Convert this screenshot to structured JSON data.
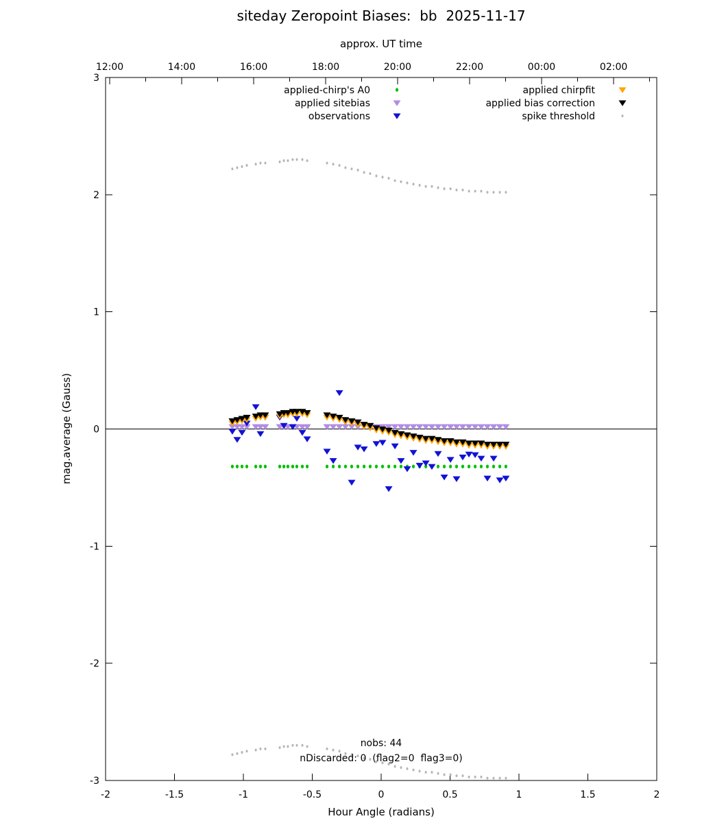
{
  "title": "siteday Zeropoint Biases:  bb  2025-11-17",
  "axes": {
    "top_label": "approx. UT time",
    "bottom_label": "Hour Angle (radians)",
    "left_label": "mag.average (Gauss)"
  },
  "annotations": {
    "nobs": "nobs: 44",
    "ndiscarded": "nDiscarded: 0  (flag2=0  flag3=0)"
  },
  "legend": {
    "items": [
      {
        "label": "applied-chirp's A0",
        "series": "applied-chirp's A0",
        "col": 0,
        "row": 0
      },
      {
        "label": "applied sitebias",
        "series": "applied sitebias",
        "col": 0,
        "row": 1
      },
      {
        "label": "observations",
        "series": "observations",
        "col": 0,
        "row": 2
      },
      {
        "label": "applied chirpfit",
        "series": "applied chirpfit",
        "col": 1,
        "row": 0
      },
      {
        "label": "applied bias correction",
        "series": "applied bias correction",
        "col": 1,
        "row": 1
      },
      {
        "label": "spike threshold",
        "series": "spike threshold upper",
        "col": 1,
        "row": 2
      }
    ]
  },
  "chart_data": {
    "type": "scatter",
    "title": "siteday Zeropoint Biases:  bb  2025-11-17",
    "xlabel": "Hour Angle (radians)",
    "x2label": "approx. UT time",
    "ylabel": "mag.average (Gauss)",
    "x_range": [
      -2,
      2
    ],
    "y_range": [
      -3,
      3
    ],
    "grid": false,
    "legend_position": "top-inside-two-columns",
    "x_ticks": [
      {
        "v": -2,
        "label": "-2"
      },
      {
        "v": -1.5,
        "label": "-1.5"
      },
      {
        "v": -1,
        "label": "-1"
      },
      {
        "v": -0.5,
        "label": "-0.5"
      },
      {
        "v": 0,
        "label": "0"
      },
      {
        "v": 0.5,
        "label": "0.5"
      },
      {
        "v": 1,
        "label": "1"
      },
      {
        "v": 1.5,
        "label": "1.5"
      },
      {
        "v": 2,
        "label": "2"
      }
    ],
    "y_ticks": [
      {
        "v": -3,
        "label": "-3"
      },
      {
        "v": -2,
        "label": "-2"
      },
      {
        "v": -1,
        "label": "-1"
      },
      {
        "v": 0,
        "label": "0"
      },
      {
        "v": 1,
        "label": "1"
      },
      {
        "v": 2,
        "label": "2"
      },
      {
        "v": 3,
        "label": "3"
      }
    ],
    "top_ticks": [
      {
        "x": -1.97,
        "label": "12:00"
      },
      {
        "x": -1.709
      },
      {
        "x": -1.448,
        "label": "14:00"
      },
      {
        "x": -1.187
      },
      {
        "x": -0.925,
        "label": "16:00"
      },
      {
        "x": -0.664
      },
      {
        "x": -0.403,
        "label": "18:00"
      },
      {
        "x": -0.142
      },
      {
        "x": 0.119,
        "label": "20:00"
      },
      {
        "x": 0.381
      },
      {
        "x": 0.642,
        "label": "22:00"
      },
      {
        "x": 0.903
      },
      {
        "x": 1.164,
        "label": "00:00"
      },
      {
        "x": 1.425
      },
      {
        "x": 1.687,
        "label": "02:00"
      },
      {
        "x": 1.948
      }
    ],
    "zero_line": true,
    "x": [
      -1.08,
      -1.045,
      -1.01,
      -0.975,
      -0.91,
      -0.876,
      -0.841,
      -0.736,
      -0.706,
      -0.677,
      -0.642,
      -0.612,
      -0.572,
      -0.537,
      -0.393,
      -0.348,
      -0.303,
      -0.259,
      -0.214,
      -0.169,
      -0.124,
      -0.08,
      -0.035,
      0.01,
      0.055,
      0.1,
      0.144,
      0.189,
      0.234,
      0.279,
      0.324,
      0.368,
      0.413,
      0.458,
      0.503,
      0.547,
      0.592,
      0.637,
      0.682,
      0.726,
      0.771,
      0.816,
      0.861,
      0.905
    ],
    "series": [
      {
        "name": "spike threshold upper",
        "legend_label": "spike threshold",
        "color": "#b5b5b5",
        "marker": "dot-tiny",
        "y": [
          2.22,
          2.23,
          2.24,
          2.25,
          2.26,
          2.27,
          2.27,
          2.28,
          2.29,
          2.29,
          2.3,
          2.3,
          2.3,
          2.29,
          2.27,
          2.26,
          2.25,
          2.23,
          2.22,
          2.21,
          2.19,
          2.18,
          2.16,
          2.15,
          2.14,
          2.12,
          2.11,
          2.1,
          2.09,
          2.08,
          2.07,
          2.07,
          2.06,
          2.05,
          2.05,
          2.04,
          2.04,
          2.03,
          2.03,
          2.03,
          2.02,
          2.02,
          2.02,
          2.02
        ]
      },
      {
        "name": "spike threshold lower",
        "legend_label": "spike threshold",
        "color": "#b5b5b5",
        "marker": "dot-tiny",
        "y": [
          -2.78,
          -2.77,
          -2.76,
          -2.75,
          -2.74,
          -2.73,
          -2.73,
          -2.72,
          -2.71,
          -2.71,
          -2.7,
          -2.7,
          -2.7,
          -2.71,
          -2.73,
          -2.74,
          -2.75,
          -2.77,
          -2.78,
          -2.79,
          -2.81,
          -2.82,
          -2.84,
          -2.85,
          -2.86,
          -2.88,
          -2.89,
          -2.9,
          -2.91,
          -2.92,
          -2.93,
          -2.93,
          -2.94,
          -2.95,
          -2.95,
          -2.96,
          -2.96,
          -2.97,
          -2.97,
          -2.97,
          -2.98,
          -2.98,
          -2.98,
          -2.98
        ]
      },
      {
        "name": "applied-chirp's A0",
        "color": "#00c000",
        "marker": "dot-small",
        "y": [
          -0.32,
          -0.32,
          -0.32,
          -0.32,
          -0.32,
          -0.32,
          -0.32,
          -0.32,
          -0.32,
          -0.32,
          -0.32,
          -0.32,
          -0.32,
          -0.32,
          -0.32,
          -0.32,
          -0.32,
          -0.32,
          -0.32,
          -0.32,
          -0.32,
          -0.32,
          -0.32,
          -0.32,
          -0.32,
          -0.32,
          -0.32,
          -0.32,
          -0.32,
          -0.32,
          -0.32,
          -0.32,
          -0.32,
          -0.32,
          -0.32,
          -0.32,
          -0.32,
          -0.32,
          -0.32,
          -0.32,
          -0.32,
          -0.32,
          -0.32,
          -0.32
        ]
      },
      {
        "name": "applied sitebias",
        "color": "#b28ce6",
        "marker": "triangle-down",
        "y": [
          0.02,
          0.02,
          0.02,
          0.02,
          0.02,
          0.02,
          0.02,
          0.02,
          0.02,
          0.02,
          0.02,
          0.02,
          0.02,
          0.02,
          0.02,
          0.02,
          0.02,
          0.02,
          0.02,
          0.02,
          0.02,
          0.02,
          0.02,
          0.02,
          0.02,
          0.02,
          0.02,
          0.02,
          0.02,
          0.02,
          0.02,
          0.02,
          0.02,
          0.02,
          0.02,
          0.02,
          0.02,
          0.02,
          0.02,
          0.02,
          0.02,
          0.02,
          0.02,
          0.02
        ]
      },
      {
        "name": "observations",
        "color": "#1212d6",
        "marker": "triangle-down",
        "y": [
          -0.02,
          -0.09,
          -0.03,
          0.05,
          0.19,
          -0.04,
          0.1,
          0.1,
          0.03,
          0.13,
          0.02,
          0.09,
          -0.03,
          -0.085,
          -0.19,
          -0.27,
          0.31,
          0.06,
          -0.455,
          -0.155,
          -0.17,
          0.01,
          -0.125,
          -0.115,
          -0.51,
          -0.145,
          -0.27,
          -0.34,
          -0.2,
          -0.31,
          -0.29,
          -0.32,
          -0.21,
          -0.41,
          -0.26,
          -0.425,
          -0.24,
          -0.215,
          -0.22,
          -0.25,
          -0.42,
          -0.25,
          -0.435,
          -0.42
        ]
      },
      {
        "name": "applied chirpfit",
        "color": "#ffa500",
        "marker": "triangle-down",
        "y": [
          0.05,
          0.06,
          0.07,
          0.08,
          0.09,
          0.1,
          0.1,
          0.11,
          0.12,
          0.12,
          0.13,
          0.13,
          0.13,
          0.12,
          0.1,
          0.09,
          0.08,
          0.06,
          0.05,
          0.04,
          0.02,
          0.01,
          -0.01,
          -0.02,
          -0.03,
          -0.05,
          -0.06,
          -0.07,
          -0.08,
          -0.09,
          -0.1,
          -0.1,
          -0.11,
          -0.12,
          -0.12,
          -0.13,
          -0.13,
          -0.14,
          -0.14,
          -0.14,
          -0.15,
          -0.15,
          -0.15,
          -0.15
        ]
      },
      {
        "name": "applied bias correction",
        "color": "#000000",
        "marker": "triangle-down",
        "y": [
          0.07,
          0.08,
          0.09,
          0.1,
          0.11,
          0.12,
          0.12,
          0.13,
          0.14,
          0.14,
          0.15,
          0.15,
          0.15,
          0.14,
          0.12,
          0.11,
          0.1,
          0.08,
          0.07,
          0.06,
          0.04,
          0.03,
          0.01,
          0.0,
          -0.01,
          -0.03,
          -0.04,
          -0.05,
          -0.06,
          -0.07,
          -0.08,
          -0.08,
          -0.09,
          -0.1,
          -0.1,
          -0.11,
          -0.11,
          -0.12,
          -0.12,
          -0.12,
          -0.13,
          -0.13,
          -0.13,
          -0.13
        ]
      }
    ]
  }
}
